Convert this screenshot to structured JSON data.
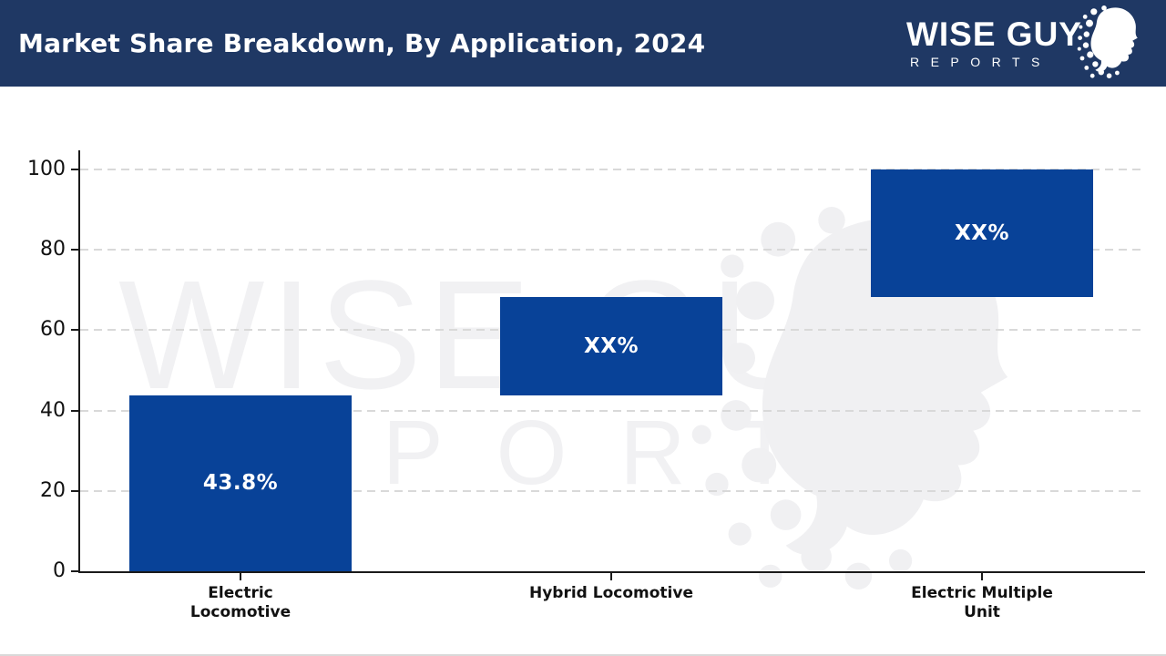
{
  "header": {
    "title": "Market Share Breakdown, By Application, 2024",
    "logo": {
      "brand": "WISE GUY",
      "sub": "REPORTS"
    }
  },
  "watermark": {
    "brand": "WISE GUY",
    "sub": "REPORTS"
  },
  "colors": {
    "header_bg": "#1f3864",
    "bar": "#084298",
    "bar_label": "#ffffff",
    "grid": "#d9d9d9",
    "axis": "#1a1a1a"
  },
  "chart_data": {
    "type": "bar",
    "variant": "stacked_percentage_waterfall",
    "title": "Market Share Breakdown, By Application, 2024",
    "categories": [
      "Electric\nLocomotive",
      "Hybrid Locomotive",
      "Electric Multiple\nUnit"
    ],
    "segments": [
      {
        "category": "Electric Locomotive",
        "from": 0,
        "to": 43.8,
        "label": "43.8%"
      },
      {
        "category": "Hybrid Locomotive",
        "from": 43.8,
        "to": 68.2,
        "label": "XX%"
      },
      {
        "category": "Electric Multiple Unit",
        "from": 68.2,
        "to": 100,
        "label": "XX%"
      }
    ],
    "ylim": [
      0,
      100
    ],
    "yticks": [
      0,
      20,
      40,
      60,
      80,
      100
    ],
    "ytick_labels": [
      "0",
      "20",
      "40",
      "60",
      "80",
      "100"
    ],
    "grid": "horizontal-dashed",
    "legend": "none"
  }
}
